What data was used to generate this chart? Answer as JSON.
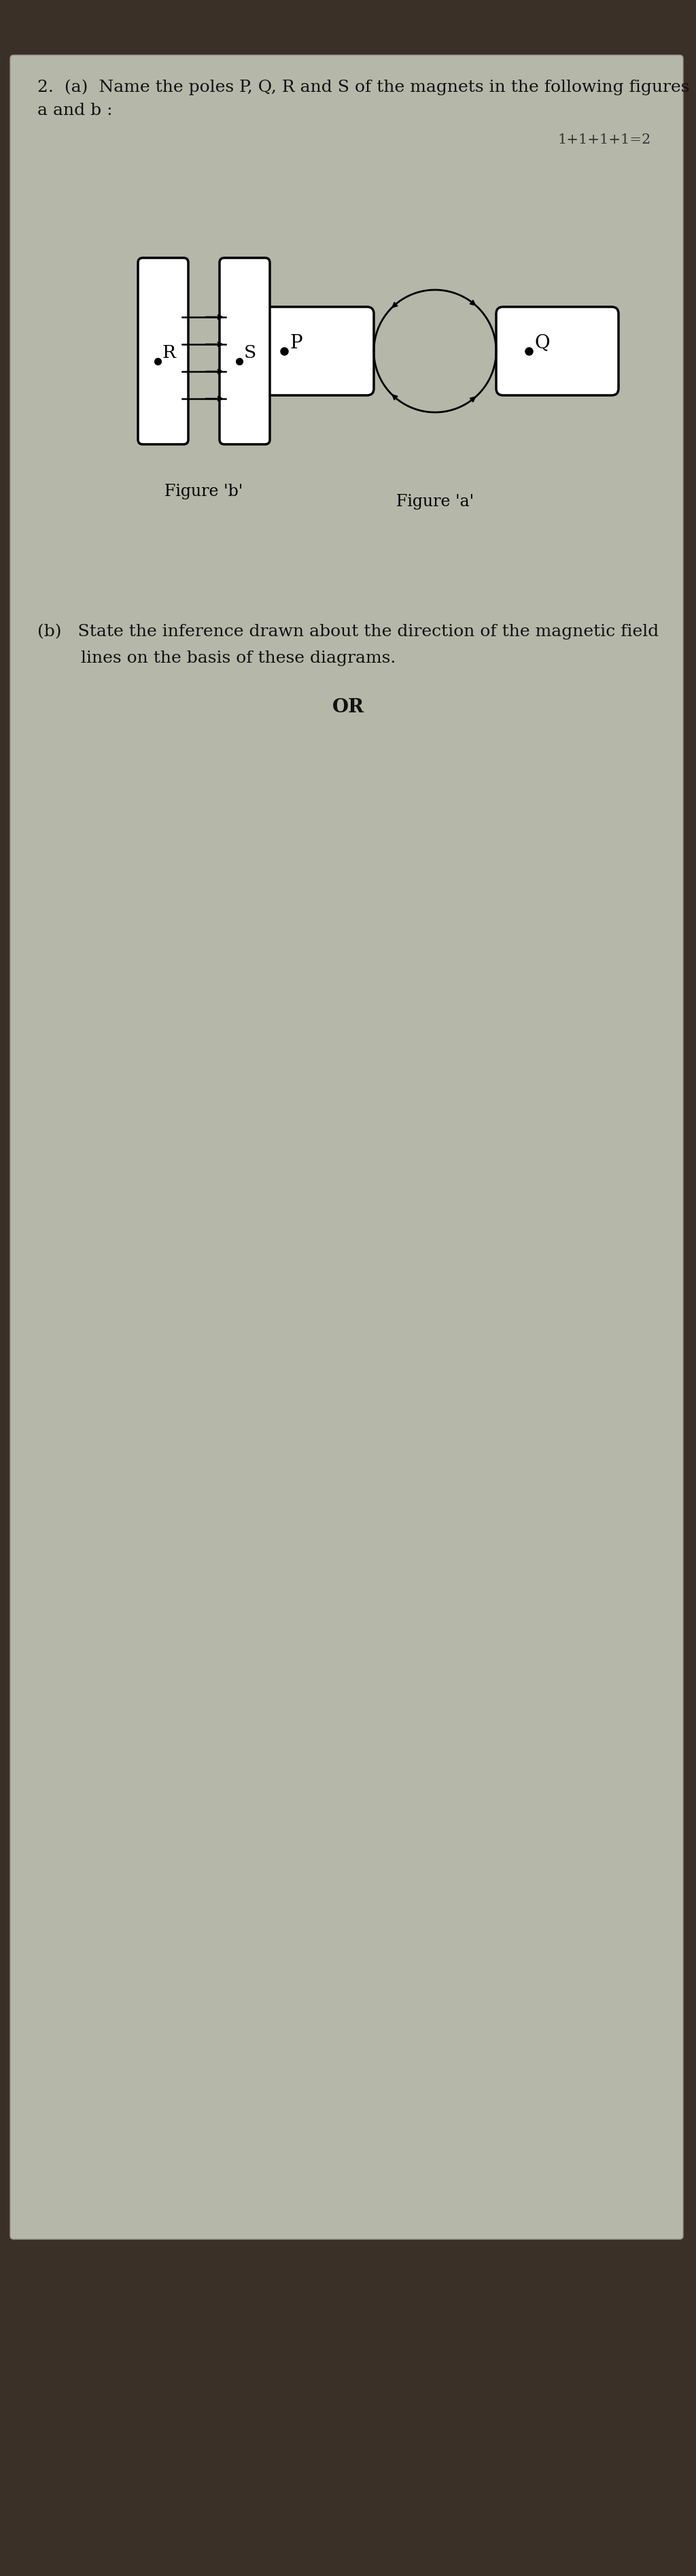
{
  "bg_color_top": "#4a3a28",
  "bg_color_paper": "#b8b8a8",
  "paper_color": "#c0c0b0",
  "text_color": "#111111",
  "title_line1": "2.  (a)  Name the poles P, Q, R and S of the magnets in the following figures",
  "title_line2": "a and b :",
  "note_text": "1+1+1+1=2",
  "fig_a_label": "Figure 'a'",
  "fig_b_label": "Figure 'b'",
  "part_b_line1": "(b)   State the inference drawn about the direction of the magnetic field",
  "part_b_line2": "        lines on the basis of these diagrams.",
  "or_text": "OR",
  "pole_P": "P",
  "pole_Q": "Q",
  "pole_R": "R",
  "pole_S": "S"
}
